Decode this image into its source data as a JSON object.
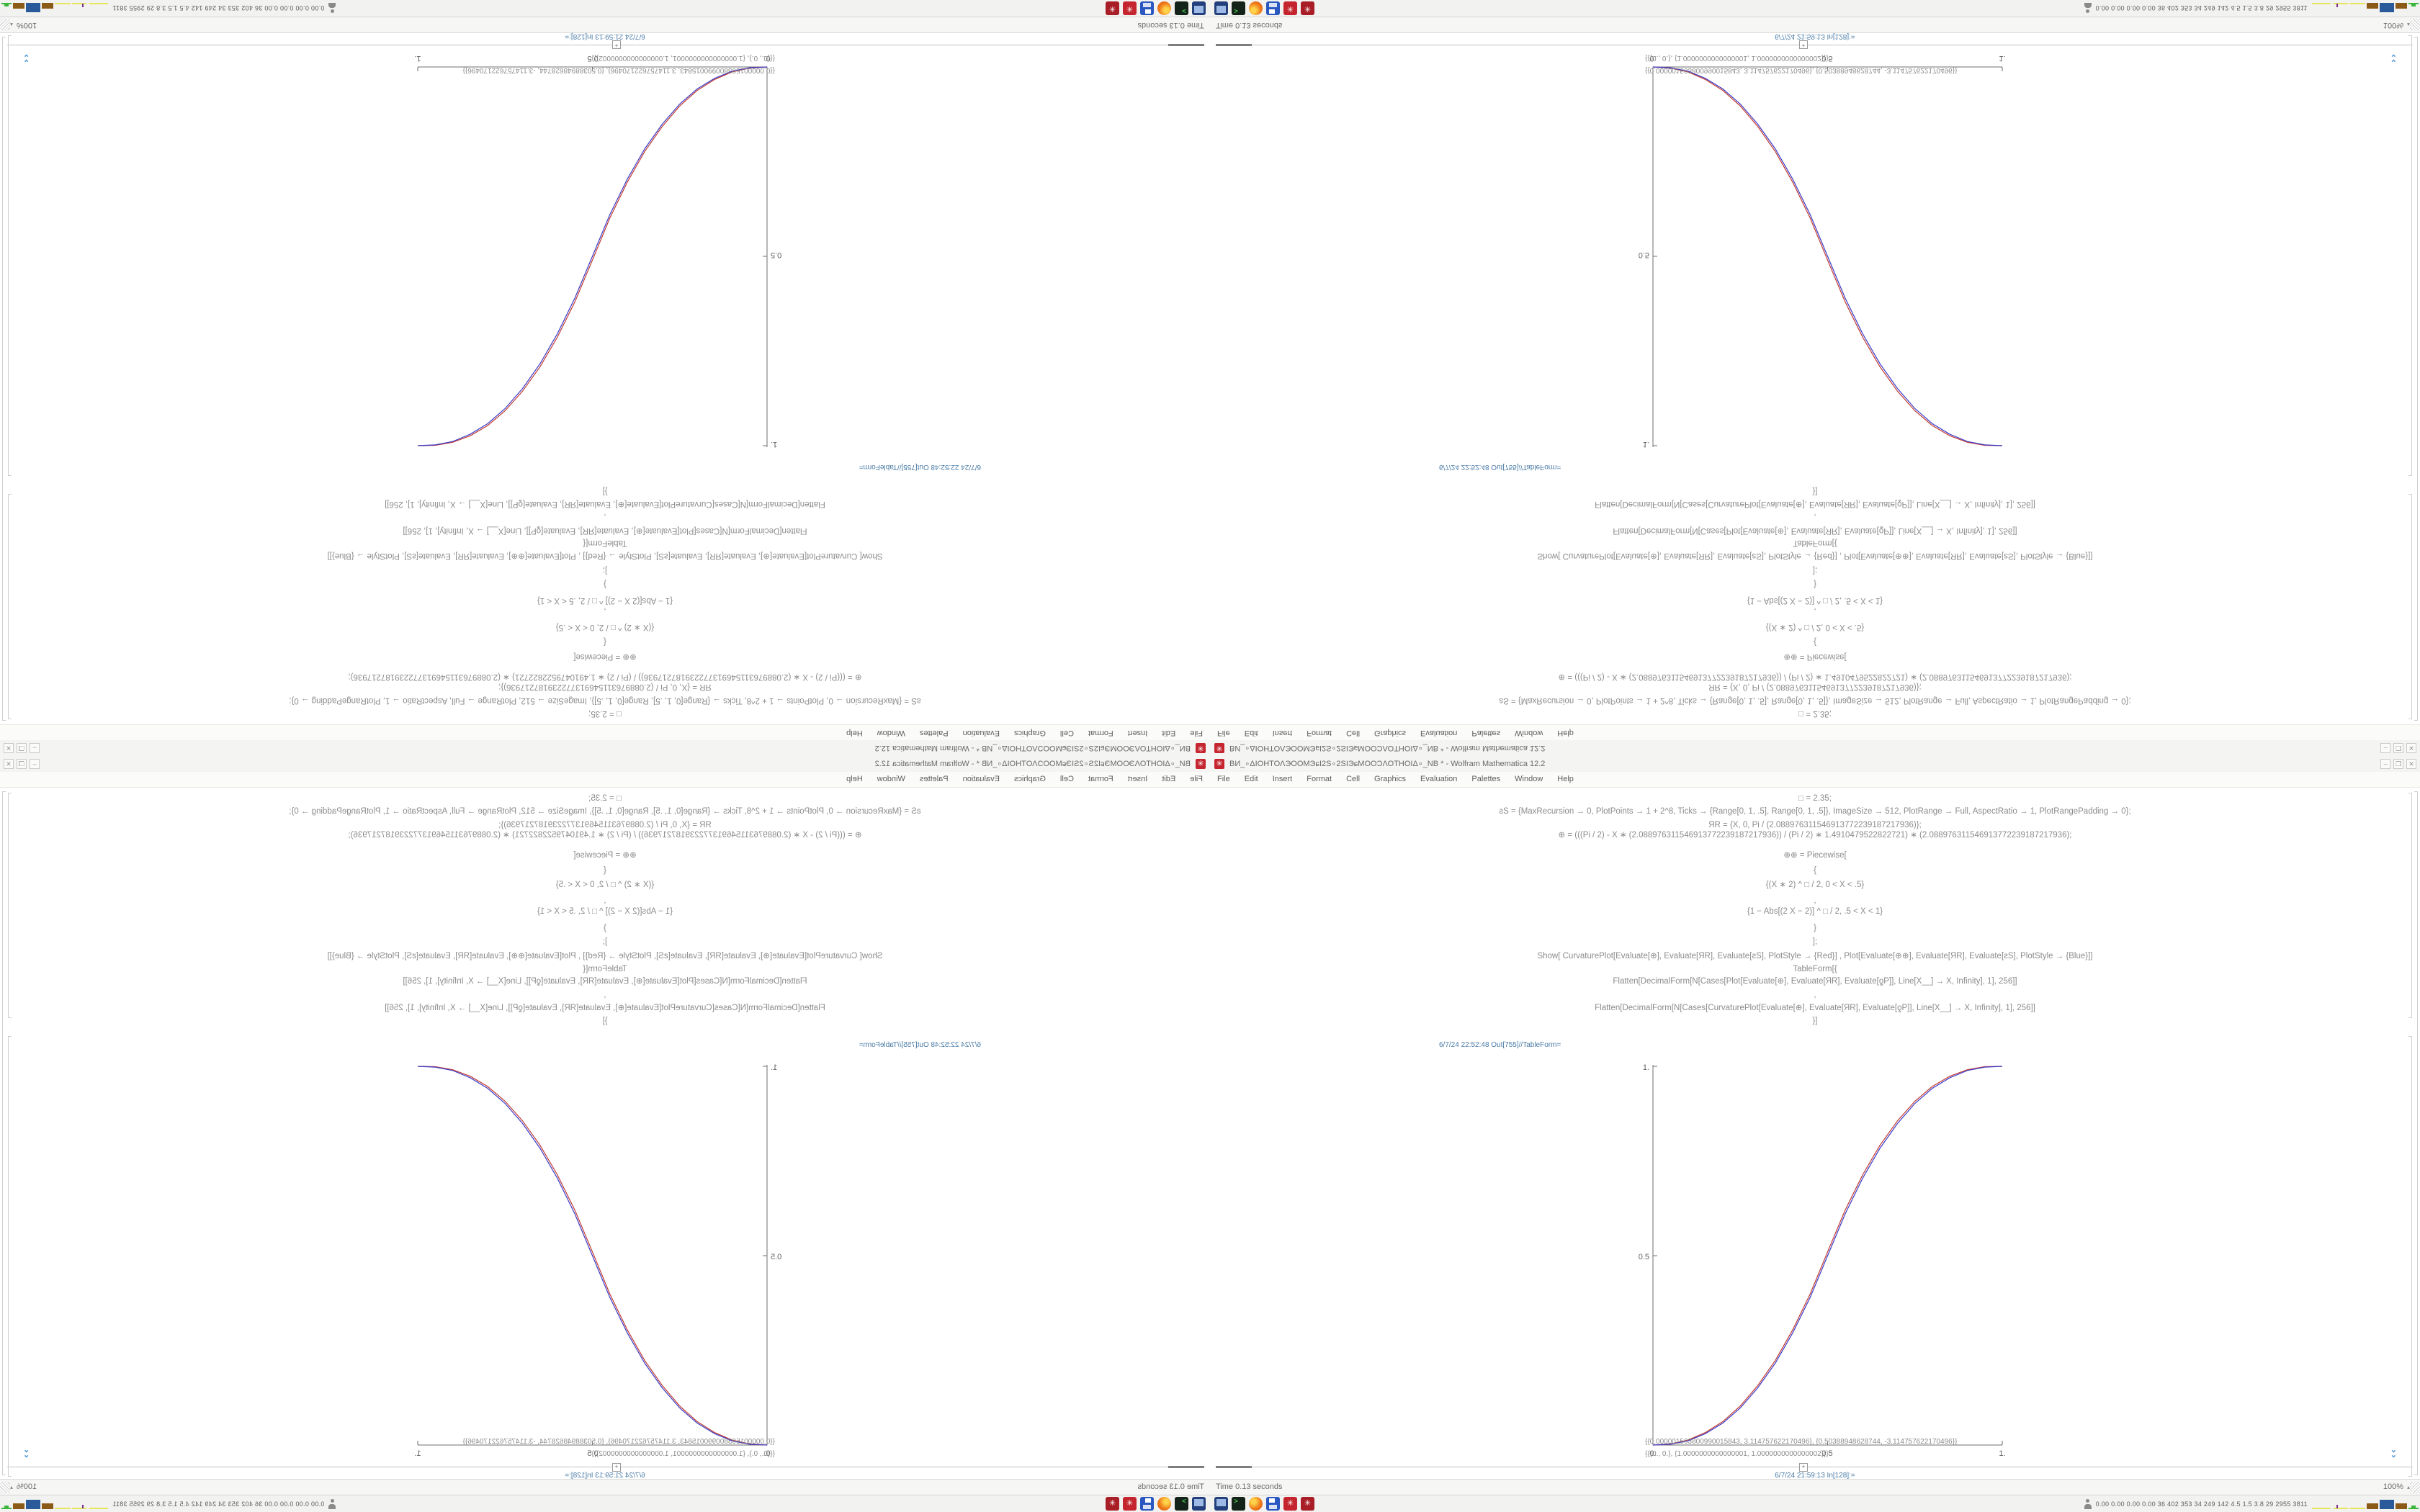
{
  "window": {
    "title": "ВИ_∘ΔΙΟΗΤΟΛЭΟΟΜЭɕΙ2Ѕ∘2ЅΙЭɕΜΟΟϽΛΟΤΗΟΙΔ∘_ΝВ * - Wolfram Mathematica 12.2",
    "app_icon_glyph": "✳",
    "controls": {
      "minimize": "–",
      "maximize": "❐",
      "close": "✕"
    }
  },
  "menu": {
    "items": [
      "File",
      "Edit",
      "Insert",
      "Format",
      "Cell",
      "Graphics",
      "Evaluation",
      "Palettes",
      "Window",
      "Help"
    ]
  },
  "notebook": {
    "code": {
      "l1": "□ = 2.35;",
      "l2": "ƨЅ = {MaxRecursion → 0, PlotPoints → 1 + 2^8, Ticks → {Range[0, 1, .5], Range[0, 1, .5]}, ImageSize → 512, PlotRange → Full, AspectRatio → 1, PlotRangePadding → 0};",
      "l3": "ЯR = {X, 0, Pi / (2.088976311546913772239187217936)};",
      "l4": "⊕ = (((Pi / 2) - X ∗ (2.088976311546913772239187217936)) / (Pi / 2) ∗ 1.4910479522822721) ∗ (2.088976311546913772239187217936);",
      "l5": "⊕⊕ = Piecewise[",
      "l6": "{",
      "l7": "{(X ∗ 2) ^ □ / 2, 0 < X < .5}",
      "l8": ",",
      "l9": "{1 − Abs[(2 X − 2)] ^ □ / 2, .5 < X < 1}",
      "l10": "}",
      "l11": "];",
      "l12": "Show[  CurvaturePlot[Evaluate[⊕], Evaluate[ЯR], Evaluate[ƨЅ], PlotStyle → {Red}]   ,   Plot[Evaluate[⊕⊕], Evaluate[ЯR], Evaluate[ƨЅ],  PlotStyle → {Blue}]]",
      "l13": "TableForm[{",
      "l14": "Flatten[DecimalForm[N[Cases[Plot[Evaluate[⊕], Evaluate[ЯR], Evaluate[ƍP]], Line[X__] → X, Infinity], 1], 256]]",
      "l15": ",",
      "l16": "Flatten[DecimalForm[N[Cases[CurvaturePlot[Evaluate[⊕], Evaluate[ЯR], Evaluate[ƍP]], Line[X__] → X, Infinity], 1], 256]]",
      "l17": "}]"
    },
    "out_label": "6/7/24 22:52:48 Out[755]//TableForm=",
    "result1": "{{0.000001503800990015843, 3.114757622170496}, {0.50388948628744, -3.114757622170496}}",
    "result2": "{{{0., 0.}, {1.0000000000000001, 1.0000000000000002}}}",
    "insert_plus": "+",
    "next_in_label": "6/7/24 21:59:13 In[128]:="
  },
  "chart_data": {
    "type": "line",
    "title": "",
    "xlabel": "",
    "ylabel": "",
    "xlim": [
      0,
      1
    ],
    "ylim": [
      0,
      1
    ],
    "grid": false,
    "legend": "none",
    "xticks": [
      "0.",
      "0.5",
      "1."
    ],
    "yticks": [
      "0.5",
      "1."
    ],
    "x": [
      0,
      0.05,
      0.1,
      0.15,
      0.2,
      0.25,
      0.3,
      0.35,
      0.4,
      0.45,
      0.5,
      0.55,
      0.6,
      0.65,
      0.7,
      0.75,
      0.8,
      0.85,
      0.9,
      0.95,
      1
    ],
    "series": [
      {
        "name": "CurvaturePlot (Red)",
        "color": "#c23a32",
        "values": [
          0,
          0.003,
          0.013,
          0.033,
          0.062,
          0.103,
          0.157,
          0.223,
          0.304,
          0.399,
          0.51,
          0.62,
          0.713,
          0.792,
          0.856,
          0.908,
          0.947,
          0.974,
          0.991,
          0.999,
          1
        ]
      },
      {
        "name": "Plot (Blue)",
        "color": "#3b3bc8",
        "values": [
          0,
          0.002,
          0.011,
          0.03,
          0.058,
          0.098,
          0.151,
          0.216,
          0.296,
          0.39,
          0.5,
          0.61,
          0.704,
          0.784,
          0.849,
          0.902,
          0.942,
          0.97,
          0.989,
          0.998,
          1
        ]
      }
    ]
  },
  "status": {
    "time": "Time 0.13 seconds",
    "zoom": "100%",
    "zoom_arrow": "▴"
  },
  "taskbar": {
    "tray_text": "0.00 0.00 0.00 0.00   36   402   353   34   249   142   4.5   1.5   3.8   29   2955 3811"
  }
}
